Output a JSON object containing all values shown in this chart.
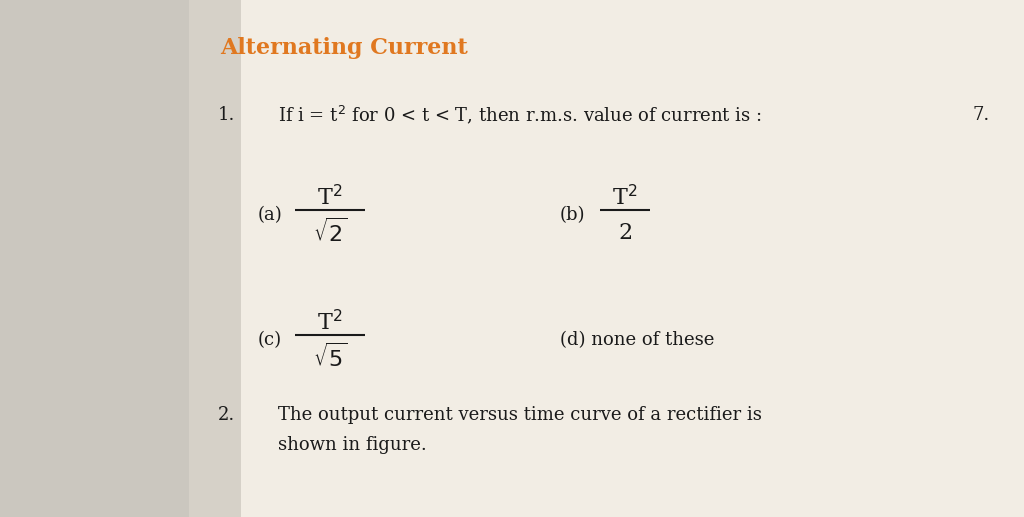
{
  "background_color": "#cbc7bf",
  "page_background": "#f2ede4",
  "title": "Alternating Current",
  "title_color": "#e07820",
  "title_fontsize": 16,
  "page_number": "7.",
  "q1_number": "1.",
  "q1_rest": "If i = t$^2$ for 0 < t < T, then r.m.s. value of current is :",
  "opt_a_label": "(a)",
  "opt_b_label": "(b)",
  "opt_c_label": "(c)",
  "opt_d_label": "(d)",
  "opt_d_text": "none of these",
  "q2_number": "2.",
  "q2_line1": "The output current versus time curve of a rectifier is",
  "q2_line2": "shown in figure.",
  "text_color": "#1a1a1a",
  "body_fontsize": 13,
  "math_fontsize": 16,
  "figsize": [
    10.24,
    5.17
  ],
  "dpi": 100
}
